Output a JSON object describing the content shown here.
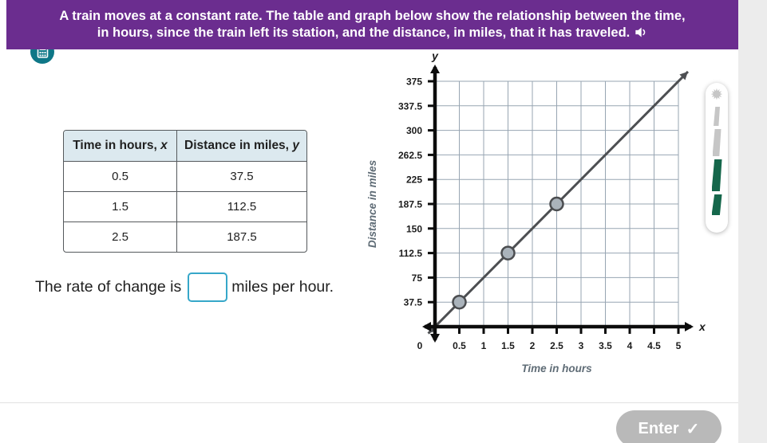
{
  "banner": {
    "line1": "A train moves at a constant rate. The table and graph below show the relationship between the time,",
    "line2": "in hours, since the train left its station, and the distance, in miles, that it has traveled.",
    "bg_color": "#6b2d8f",
    "speaker_icon": "speaker-icon"
  },
  "toolbar": {
    "calculator_icon": "calculator-icon",
    "calculator_bg": "#0e7787"
  },
  "table": {
    "header_bg": "#dce9ef",
    "headers": [
      {
        "label": "Time in hours,",
        "variable": "x"
      },
      {
        "label": "Distance in miles,",
        "variable": "y"
      }
    ],
    "rows": [
      {
        "time": "0.5",
        "distance": "37.5"
      },
      {
        "time": "1.5",
        "distance": "112.5"
      },
      {
        "time": "2.5",
        "distance": "187.5"
      }
    ]
  },
  "answer": {
    "prefix": "The rate of change is",
    "suffix": "miles per hour.",
    "value": "",
    "input_border": "#36a7c9"
  },
  "chart_data": {
    "type": "line",
    "title": "",
    "xlabel": "Time in hours",
    "ylabel": "Distance in miles",
    "x_axis_letter": "x",
    "y_axis_letter": "y",
    "xlim": [
      0,
      5
    ],
    "ylim": [
      0,
      375
    ],
    "x_ticks": [
      0,
      0.5,
      1,
      1.5,
      2,
      2.5,
      3,
      3.5,
      4,
      4.5,
      5
    ],
    "y_ticks": [
      37.5,
      75,
      112.5,
      150,
      187.5,
      225,
      262.5,
      300,
      337.5,
      375
    ],
    "grid": true,
    "legend": "none",
    "line": {
      "slope": 75,
      "intercept": 0,
      "equation": "y = 75x",
      "arrows_both_ends": true
    },
    "points": [
      [
        0.5,
        37.5
      ],
      [
        1.5,
        112.5
      ],
      [
        2.5,
        187.5
      ]
    ],
    "origin_label": "0",
    "colors": {
      "grid": "#97a5b2",
      "axis": "#0c0c0c",
      "line": "#4d4f52",
      "point_fill": "#aab3bb",
      "point_stroke": "#4b4d50",
      "tick_label": "#1c1c1c",
      "axis_title": "#5f6c76",
      "axis_letter": "#1a1a1a"
    }
  },
  "smartscore": {
    "star_color": "#c6c6c6",
    "segments": [
      {
        "color": "#c6c6c6"
      },
      {
        "color": "#c6c6c6"
      },
      {
        "color": "#15674b"
      },
      {
        "color": "#15674b"
      }
    ]
  },
  "enter_button": {
    "label": "Enter",
    "check": "✓",
    "bg": "#b9b9b9"
  }
}
